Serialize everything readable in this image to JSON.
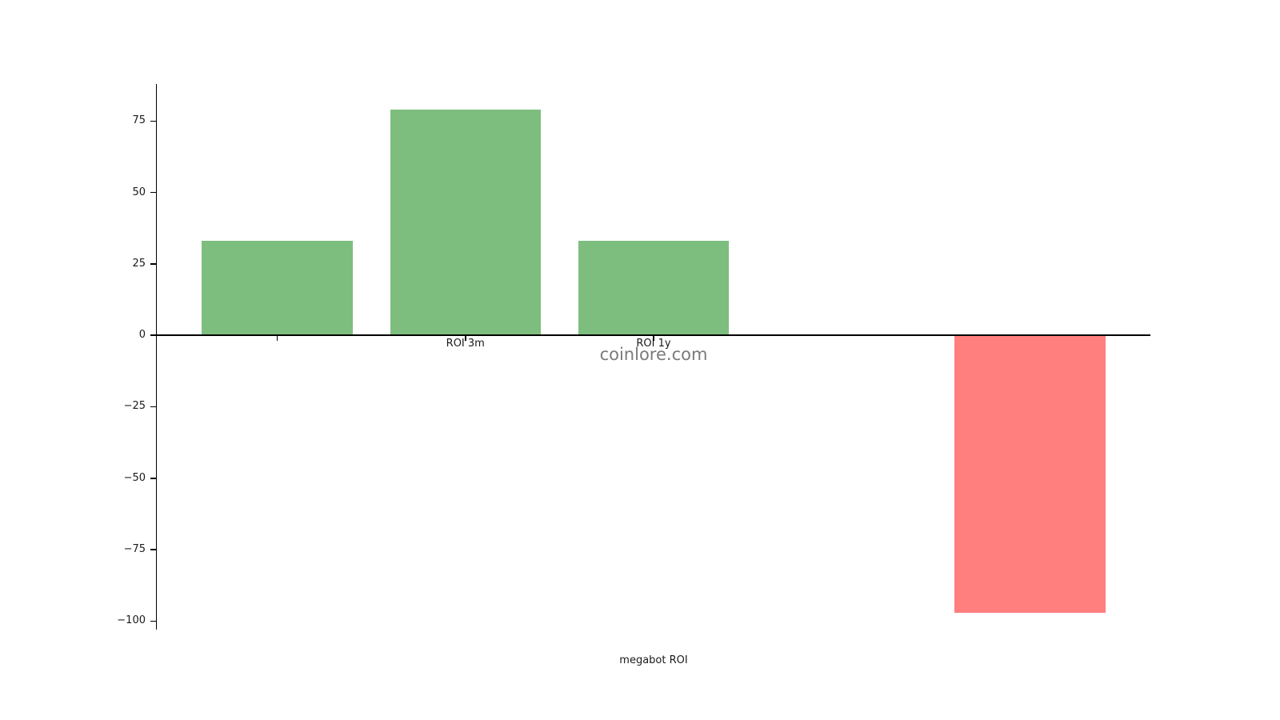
{
  "chart_data": {
    "type": "bar",
    "title": "megabot ROI",
    "watermark": "coinlore.com",
    "x_slot_count": 5,
    "xlim": [
      -0.64,
      4.64
    ],
    "ylim": [
      -103,
      88
    ],
    "bar_width": 0.8,
    "grid": false,
    "legend": "none",
    "y_ticks": [
      75,
      50,
      25,
      0,
      -25,
      -50,
      -75,
      -100
    ],
    "x_ticks": [
      {
        "slot": 0,
        "label": ""
      },
      {
        "slot": 1,
        "label": "ROI 3m"
      },
      {
        "slot": 2,
        "label": "ROI 1y"
      }
    ],
    "bars": [
      {
        "slot": 0,
        "value": 33,
        "color": "#7dbe7f"
      },
      {
        "slot": 1,
        "value": 79,
        "color": "#7dbe7f"
      },
      {
        "slot": 2,
        "value": 33,
        "color": "#7dbe7f"
      },
      {
        "slot": 4,
        "value": -97,
        "color": "#ff7f7f"
      }
    ],
    "colors": {
      "positive": "#7dbe7f",
      "negative": "#ff7f7f",
      "axis": "#000000",
      "tick_label": "#1a1a1a",
      "watermark": "#7a7a7a",
      "background": "#ffffff"
    }
  }
}
